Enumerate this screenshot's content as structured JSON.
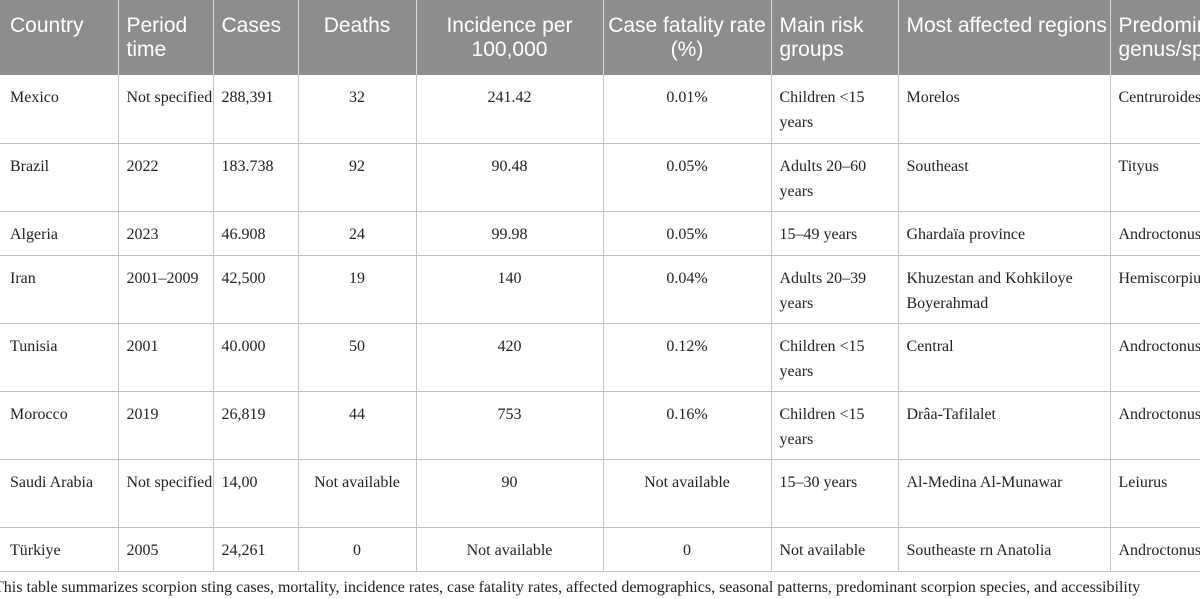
{
  "table": {
    "headers": [
      "Country",
      "Period time",
      "Cases",
      "Deaths",
      "Incidence per 100,000",
      "Case fatality rate (%)",
      "Main risk groups",
      "Most affected regions",
      "Predominant genus/species"
    ],
    "rows": [
      [
        "Mexico",
        "Not specified",
        "288,391",
        "32",
        "241.42",
        "0.01%",
        "Children <15 years",
        "Morelos",
        "Centruroides"
      ],
      [
        "Brazil",
        "2022",
        "183.738",
        "92",
        "90.48",
        "0.05%",
        "Adults 20–60 years",
        "Southeast",
        "Tityus"
      ],
      [
        "Algeria",
        "2023",
        "46.908",
        "24",
        "99.98",
        "0.05%",
        "15–49 years",
        "Ghardaïa province",
        "Androctonus"
      ],
      [
        "Iran",
        "2001–2009",
        "42,500",
        "19",
        "140",
        "0.04%",
        "Adults 20–39 years",
        "Khuzestan and Kohkiloye Boyerahmad",
        "Hemiscorpius"
      ],
      [
        "Tunisia",
        "2001",
        "40.000",
        "50",
        "420",
        "0.12%",
        "Children <15 years",
        "Central",
        "Androctonus"
      ],
      [
        "Morocco",
        "2019",
        "26,819",
        "44",
        "753",
        "0.16%",
        "Children <15 years",
        "Drâa-Tafilalet",
        "Androctonus"
      ],
      [
        "Saudi Arabia",
        "Not specified",
        "14,00",
        "Not available",
        "90",
        "Not available",
        "15–30 years",
        "Al-Medina Al-Munawar",
        "Leiurus"
      ],
      [
        "Türkiye",
        "2005",
        "24,261",
        "0",
        "Not available",
        "0",
        "Not available",
        "Southeaste rn Anatolia",
        "Androctonus"
      ]
    ]
  },
  "caption": "This table summarizes scorpion sting cases, mortality, incidence rates, case fatality rates, affected demographics, seasonal patterns, predominant scorpion species, and accessibility"
}
